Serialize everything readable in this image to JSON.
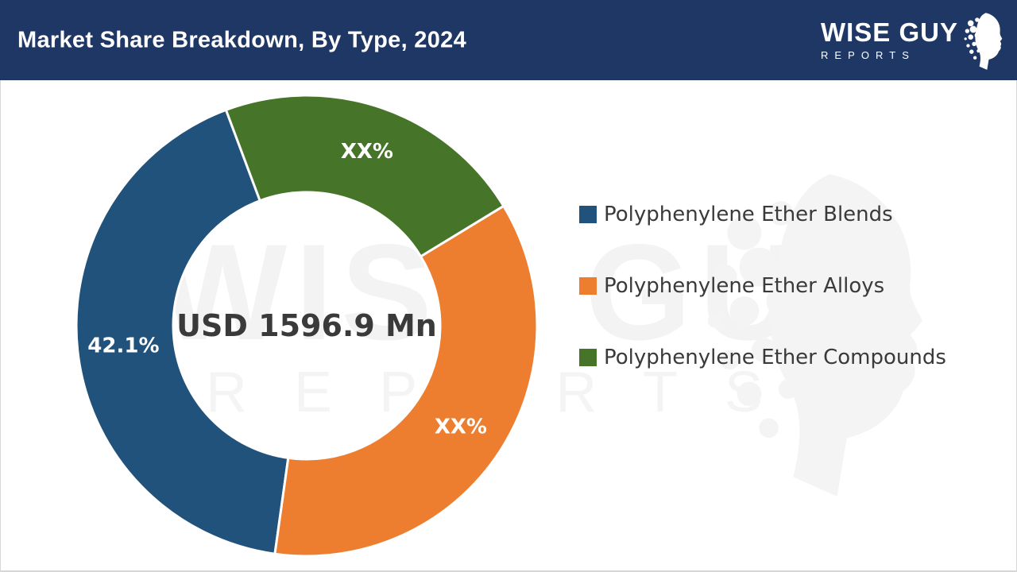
{
  "header": {
    "title": "Market Share Breakdown, By Type, 2024",
    "bg_color": "#1F3764",
    "logo": {
      "name": "WISE GUY",
      "tagline": "REPORTS"
    }
  },
  "watermark": {
    "word1": "WISE GUY",
    "word2": "REPORTS"
  },
  "chart_data": {
    "type": "pie",
    "subtype": "donut",
    "title": "Market Share Breakdown, By Type, 2024",
    "center_label": "USD 1596.9 Mn",
    "start_angle_deg": 110.5,
    "counterclockwise": true,
    "inner_radius_ratio": 0.58,
    "legend_position": "right",
    "slice_label_color": "#FFFFFF",
    "series": [
      {
        "name": "Polyphenylene Ether Blends",
        "displayed_label": "42.1%",
        "value_pct": 42.1,
        "color": "#20527B"
      },
      {
        "name": "Polyphenylene Ether Alloys",
        "displayed_label": "XX%",
        "value_pct": 35.9,
        "color": "#ED7D2F"
      },
      {
        "name": "Polyphenylene Ether Compounds",
        "displayed_label": "XX%",
        "value_pct": 22.0,
        "color": "#467428"
      }
    ]
  }
}
